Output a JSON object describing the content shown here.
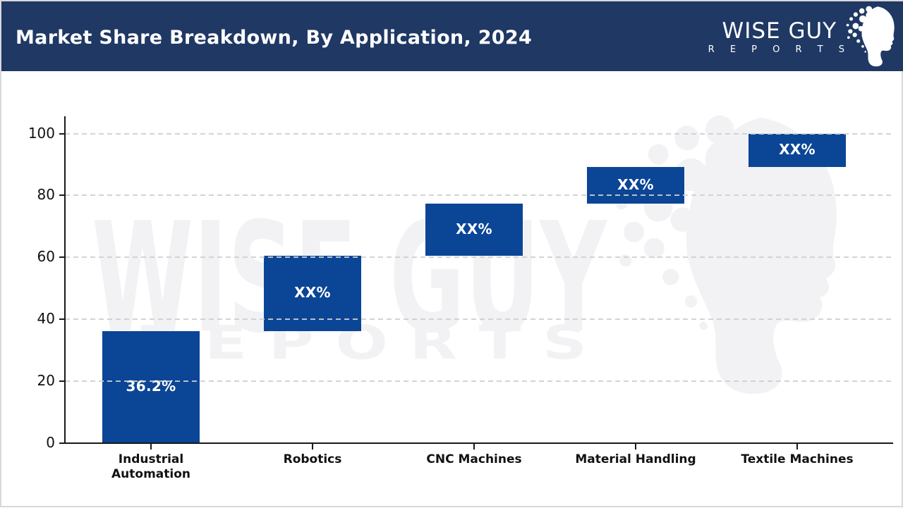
{
  "header": {
    "title": "Market Share Breakdown, By Application, 2024",
    "logo": {
      "line1": "WISE GUY",
      "line2": "R E P O R T S"
    }
  },
  "watermark": {
    "line1": "WISE GUY",
    "line2": "R E P O R T S"
  },
  "chart_data": {
    "type": "bar",
    "subtype": "floating-waterfall-bars",
    "title": "Market Share Breakdown, By Application, 2024",
    "categories": [
      "Industrial Automation",
      "Robotics",
      "CNC Machines",
      "Material Handling",
      "Textile Machines"
    ],
    "series": [
      {
        "name": "Market Share (%)",
        "segments": [
          {
            "category": "Industrial Automation",
            "start": 0,
            "end": 36.2,
            "label": "36.2%"
          },
          {
            "category": "Robotics",
            "start": 36.2,
            "end": 60.5,
            "label": "XX%"
          },
          {
            "category": "CNC Machines",
            "start": 60.5,
            "end": 77.4,
            "label": "XX%"
          },
          {
            "category": "Material Handling",
            "start": 77.4,
            "end": 89.3,
            "label": "XX%"
          },
          {
            "category": "Textile Machines",
            "start": 89.3,
            "end": 100,
            "label": "XX%"
          }
        ]
      }
    ],
    "xlabel": "",
    "ylabel": "",
    "ylim": [
      0,
      100
    ],
    "yticks": [
      0,
      20,
      40,
      60,
      80,
      100
    ],
    "grid": "dashed-horizontal",
    "legend": "none"
  },
  "colors": {
    "header_bg": "#1f3864",
    "bar": "#0b4596",
    "bar_label": "#ffffff",
    "grid": "#cfcfcf",
    "axis": "#1a1a1a",
    "watermark": "#f2f2f4",
    "page_border": "#d9d9d9"
  }
}
